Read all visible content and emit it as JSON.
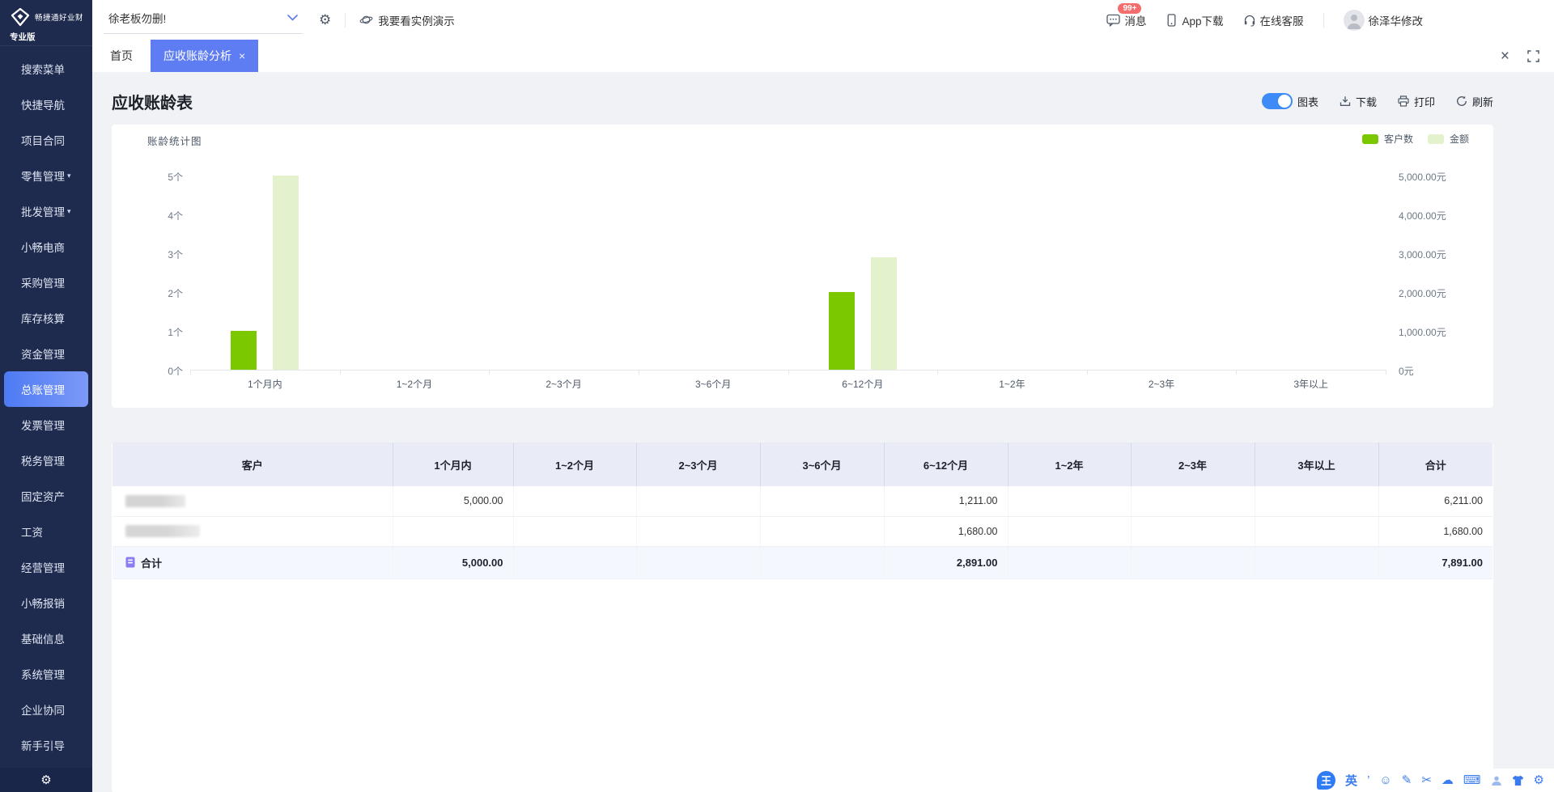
{
  "brand": {
    "name": "畅捷通好业财",
    "edition": "专业版"
  },
  "sidebar": {
    "items": [
      {
        "label": "搜索菜单"
      },
      {
        "label": "快捷导航"
      },
      {
        "label": "项目合同"
      },
      {
        "label": "零售管理",
        "arrow": true
      },
      {
        "label": "批发管理",
        "arrow": true
      },
      {
        "label": "小畅电商"
      },
      {
        "label": "采购管理"
      },
      {
        "label": "库存核算"
      },
      {
        "label": "资金管理"
      },
      {
        "label": "总账管理",
        "active": true
      },
      {
        "label": "发票管理"
      },
      {
        "label": "税务管理"
      },
      {
        "label": "固定资产"
      },
      {
        "label": "工资"
      },
      {
        "label": "经营管理"
      },
      {
        "label": "小畅报销"
      },
      {
        "label": "基础信息"
      },
      {
        "label": "系统管理"
      },
      {
        "label": "企业协同"
      },
      {
        "label": "新手引导"
      }
    ]
  },
  "topbar": {
    "company": "徐老板勿删!",
    "demo": "我要看实例演示",
    "messages": "消息",
    "badge": "99+",
    "app_download": "App下载",
    "support": "在线客服",
    "user": "徐泽华修改"
  },
  "tabs": [
    {
      "label": "首页"
    },
    {
      "label": "应收账龄分析",
      "active": true,
      "closable": true
    }
  ],
  "page": {
    "title": "应收账龄表",
    "toggle_label": "图表",
    "download": "下载",
    "print": "打印",
    "refresh": "刷新"
  },
  "chart_data": {
    "type": "bar",
    "title": "账龄统计图",
    "categories": [
      "1个月内",
      "1~2个月",
      "2~3个月",
      "3~6个月",
      "6~12个月",
      "1~2年",
      "2~3年",
      "3年以上"
    ],
    "series": [
      {
        "name": "客户数",
        "axis": "left",
        "color": "#7cc800",
        "values": [
          1,
          0,
          0,
          0,
          2,
          0,
          0,
          0
        ]
      },
      {
        "name": "金额",
        "axis": "right",
        "color": "#e3f1cc",
        "values": [
          5000,
          0,
          0,
          0,
          2891,
          0,
          0,
          0
        ]
      }
    ],
    "axes": {
      "left": {
        "max": 5,
        "ticks": [
          "5个",
          "4个",
          "3个",
          "2个",
          "1个",
          "0个"
        ]
      },
      "right": {
        "max": 5000,
        "ticks": [
          "5,000.00元",
          "4,000.00元",
          "3,000.00元",
          "2,000.00元",
          "1,000.00元",
          "0元"
        ]
      }
    },
    "legend_position": "top-right",
    "grid": false
  },
  "table": {
    "headers": [
      "客户",
      "1个月内",
      "1~2个月",
      "2~3个月",
      "3~6个月",
      "6~12个月",
      "1~2年",
      "2~3年",
      "3年以上",
      "合计"
    ],
    "rows": [
      {
        "customer_redacted": true,
        "values": [
          "5,000.00",
          "",
          "",
          "",
          "1,211.00",
          "",
          "",
          "",
          "6,211.00"
        ]
      },
      {
        "customer_redacted": true,
        "values": [
          "",
          "",
          "",
          "",
          "1,680.00",
          "",
          "",
          "",
          "1,680.00"
        ]
      }
    ],
    "total": {
      "label": "合计",
      "values": [
        "5,000.00",
        "",
        "",
        "",
        "2,891.00",
        "",
        "",
        "",
        "7,891.00"
      ]
    }
  },
  "ime": {
    "logo": "王",
    "lang": "英"
  },
  "icons": {
    "gear": "⚙",
    "chevron_down": "▾",
    "close": "×",
    "quote": "’",
    "smiley": "☺",
    "pencil": "✎",
    "scissors": "✂",
    "cloud": "☁",
    "keyboard": "⌨"
  },
  "colors": {
    "sidebar_bg": "#1e2b4e",
    "active_item": "#4d7bf3",
    "tab_active": "#5f7df2",
    "toggle_on": "#3d8bf7",
    "count_green": "#7cc800",
    "amount_green": "#e3f1cc",
    "badge_red": "#f56c6c",
    "table_header_bg": "#e9ebf7",
    "total_row_bg": "#f4f8fe"
  }
}
